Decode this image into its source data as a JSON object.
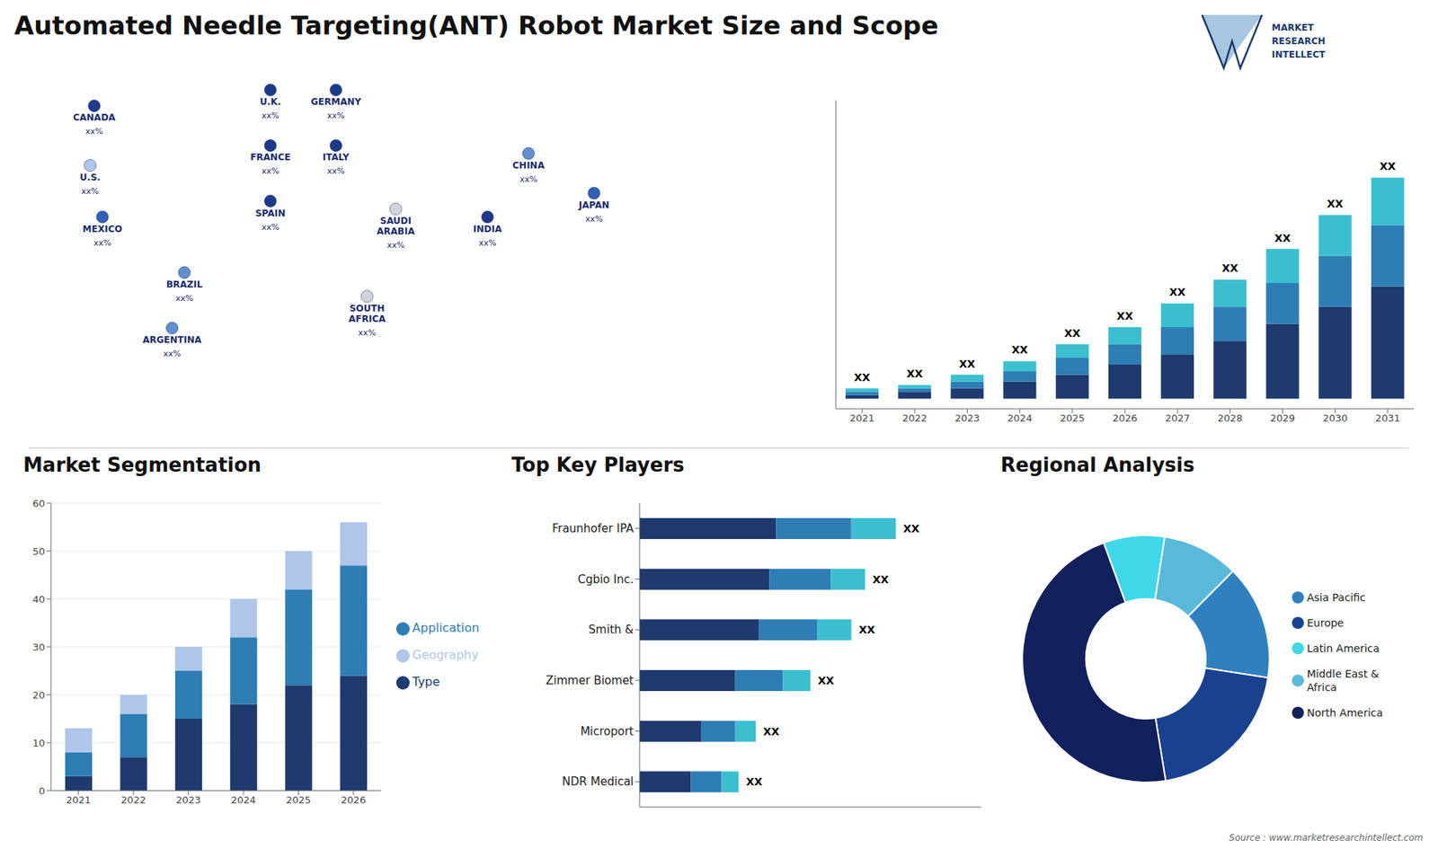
{
  "chart_data": [
    {
      "type": "bar",
      "title": "Automated Needle Targeting(ANT) Robot Market Size and Scope",
      "categories": [
        "2021",
        "2022",
        "2023",
        "2024",
        "2025",
        "2026",
        "2027",
        "2028",
        "2029",
        "2030",
        "2031"
      ],
      "stacked": true,
      "series": [
        {
          "color": "#1e3a6e",
          "values": [
            1,
            2,
            3,
            5,
            7,
            10,
            13,
            17,
            22,
            27,
            33
          ]
        },
        {
          "color": "#2e7db5",
          "values": [
            1,
            1,
            2,
            3,
            5,
            6,
            8,
            10,
            12,
            15,
            18
          ]
        },
        {
          "color": "#3bbfcf",
          "values": [
            1,
            1,
            2,
            3,
            4,
            5,
            7,
            8,
            10,
            12,
            14
          ]
        }
      ],
      "value_labels": [
        "XX",
        "XX",
        "XX",
        "XX",
        "XX",
        "XX",
        "XX",
        "XX",
        "XX",
        "XX",
        "XX"
      ],
      "ylim": [
        -3,
        87.75
      ],
      "tick_labels": "x",
      "annotations": [
        "MARKET",
        "RESEARCH",
        "INTELLECT",
        "Source : www.marketresearchintellect.com"
      ]
    },
    {
      "type": "map",
      "categories": [
        "CANADA",
        "U.S.",
        "MEXICO",
        "BRAZIL",
        "ARGENTINA",
        "U.K.",
        "FRANCE",
        "SPAIN",
        "GERMANY",
        "ITALY",
        "SAUDI\nARABIA",
        "SOUTH\nAFRICA",
        "CHINA",
        "INDIA",
        "JAPAN"
      ],
      "value_labels": [
        "xx%",
        "xx%",
        "xx%",
        "xx%",
        "xx%",
        "xx%",
        "xx%",
        "xx%",
        "xx%",
        "xx%",
        "xx%",
        "xx%",
        "xx%",
        "xx%",
        "xx%"
      ],
      "colors": [
        "#1e3a8a",
        "#afc6e9",
        "#3060b8",
        "#6090d0",
        "#6090d0",
        "#1e3a8a",
        "#1e3a8a",
        "#1e3a8a",
        "#1e3a8a",
        "#1e3a8a",
        "#d0d4dc",
        "#d0d4dc",
        "#6090d0",
        "#1e3a8a",
        "#3060b8"
      ]
    },
    {
      "type": "bar",
      "title": "Market Segmentation",
      "categories": [
        "2021",
        "2022",
        "2023",
        "2024",
        "2025",
        "2026"
      ],
      "stacked": true,
      "series": [
        {
          "name": "Type",
          "color": "#1e3a6e",
          "values": [
            3,
            7,
            15,
            18,
            22,
            24
          ]
        },
        {
          "name": "Application",
          "color": "#2e7db5",
          "values": [
            5,
            9,
            10,
            14,
            20,
            23
          ]
        },
        {
          "name": "Geography",
          "color": "#afc6e9",
          "values": [
            5,
            4,
            5,
            8,
            8,
            9
          ]
        }
      ],
      "ylim": [
        0,
        60
      ],
      "yticks": [
        0,
        10,
        20,
        30,
        40,
        50,
        60
      ],
      "grid": true,
      "legend": "right"
    },
    {
      "type": "bar",
      "title": "Top Key Players",
      "orientation": "horizontal",
      "stacked": true,
      "categories": [
        "Fraunhofer IPA",
        "Cgbio Inc.",
        "Smith &",
        "Zimmer Biomet",
        "Microport",
        "NDR Medical"
      ],
      "series": [
        {
          "color": "#1e3a6e",
          "values": [
            0.4,
            0.38,
            0.35,
            0.28,
            0.18,
            0.15
          ]
        },
        {
          "color": "#2e7db5",
          "values": [
            0.22,
            0.18,
            0.17,
            0.14,
            0.1,
            0.09
          ]
        },
        {
          "color": "#3bbfcf",
          "values": [
            0.13,
            0.1,
            0.1,
            0.08,
            0.06,
            0.05
          ]
        }
      ],
      "value_labels": [
        "XX",
        "XX",
        "XX",
        "XX",
        "XX",
        "XX"
      ],
      "xlim": [
        0,
        1
      ],
      "tick_labels": "y"
    },
    {
      "type": "pie",
      "title": "Regional Analysis",
      "categories": [
        "Latin America",
        "Middle East &\nAfrica",
        "Asia Pacific",
        "Europe",
        "North America"
      ],
      "values": [
        8,
        10,
        15,
        20,
        47
      ],
      "colors": [
        "#40d8e8",
        "#5ab8d8",
        "#3080c0",
        "#1a4090",
        "#12205c"
      ],
      "legend": "right"
    }
  ]
}
